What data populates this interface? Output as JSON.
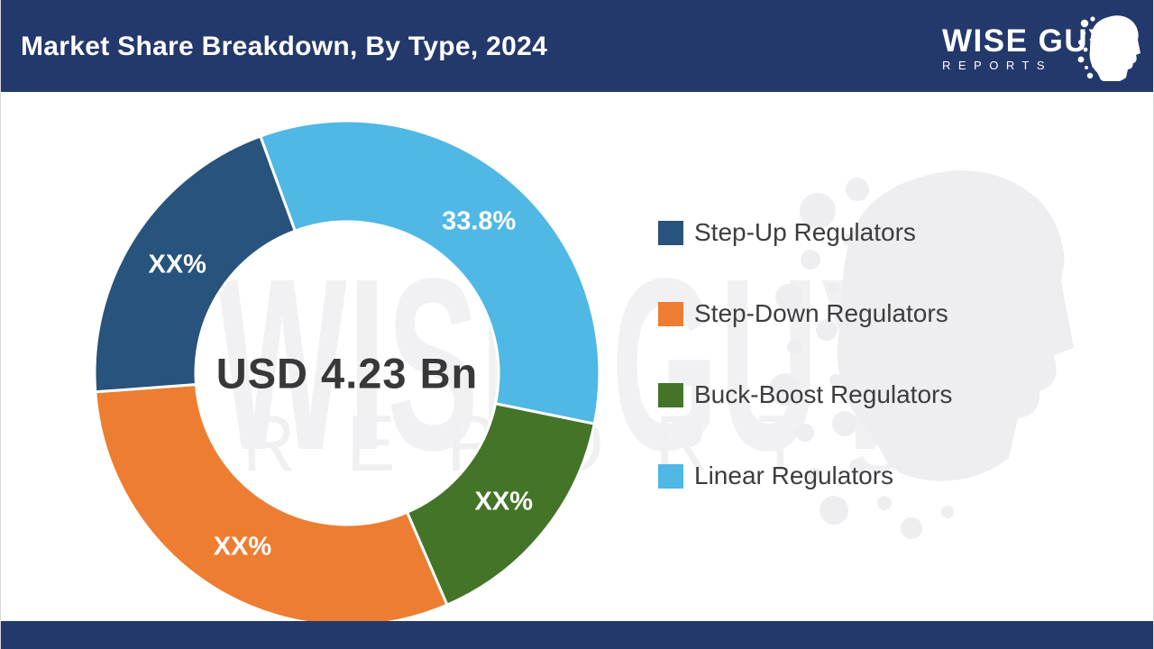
{
  "header": {
    "title": "Market Share Breakdown, By Type, 2024",
    "bg_color": "#23396B",
    "logo": {
      "line1": "WISE GUY",
      "line2": "REPORTS"
    }
  },
  "chart_data": {
    "type": "pie",
    "subtype": "donut",
    "title": "Market Share Breakdown, By Type, 2024",
    "center_label": "USD 4.23 Bn",
    "start_angle_deg": -20.1,
    "clockwise": true,
    "inner_radius_ratio": 0.6,
    "series": [
      {
        "name": "Linear Regulators",
        "value": 33.8,
        "label": "33.8%",
        "color": "#4FB8E4"
      },
      {
        "name": "Buck-Boost Regulators",
        "value": 15.3,
        "label": "XX%",
        "color": "#447428"
      },
      {
        "name": "Step-Down Regulators",
        "value": 30.3,
        "label": "XX%",
        "color": "#ED7D31"
      },
      {
        "name": "Step-Up Regulators",
        "value": 20.6,
        "label": "XX%",
        "color": "#27537C"
      }
    ]
  },
  "legend": {
    "items": [
      {
        "label": "Step-Up Regulators",
        "color": "#27537C"
      },
      {
        "label": "Step-Down Regulators",
        "color": "#ED7D31"
      },
      {
        "label": "Buck-Boost Regulators",
        "color": "#447428"
      },
      {
        "label": "Linear Regulators",
        "color": "#4FB8E4"
      }
    ]
  },
  "watermark": {
    "line1": "WISE GUY",
    "line2": "REPORTS"
  },
  "footer": {
    "bg_color": "#23396B"
  }
}
